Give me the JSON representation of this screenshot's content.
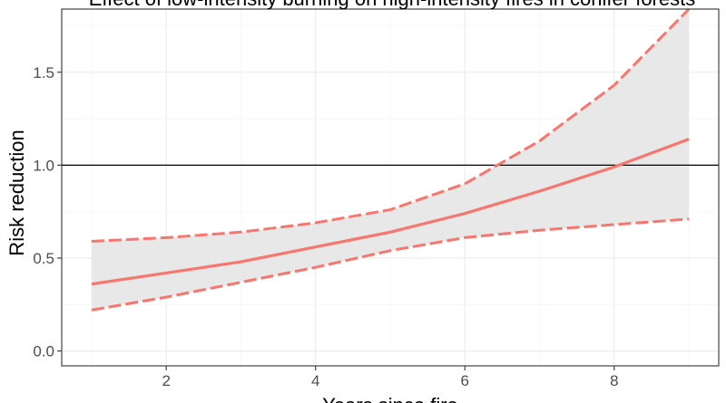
{
  "chart_data": {
    "type": "line",
    "title": "Effect of low-intensity burning on high-intensity fires in conifer forests",
    "xlabel": "Years since fire",
    "ylabel": "Risk reduction",
    "xlim": [
      0.6,
      9.4
    ],
    "ylim": [
      -0.08,
      1.84
    ],
    "x_ticks": [
      2,
      4,
      6,
      8
    ],
    "y_ticks": [
      0.0,
      0.5,
      1.0,
      1.5
    ],
    "x_tick_labels": [
      "2",
      "4",
      "6",
      "8"
    ],
    "y_tick_labels": [
      "0.0",
      "0.5",
      "1.0",
      "1.5"
    ],
    "grid": true,
    "reference_line": {
      "y": 1.0,
      "color": "#000000"
    },
    "x": [
      1,
      2,
      3,
      4,
      5,
      6,
      7,
      8,
      9
    ],
    "estimate": [
      0.36,
      0.42,
      0.48,
      0.56,
      0.64,
      0.74,
      0.86,
      0.99,
      1.14
    ],
    "lower": [
      0.22,
      0.29,
      0.37,
      0.45,
      0.54,
      0.61,
      0.65,
      0.68,
      0.71
    ],
    "upper": [
      0.59,
      0.61,
      0.64,
      0.69,
      0.76,
      0.9,
      1.13,
      1.43,
      1.84
    ],
    "line_color": "#f8766d",
    "ribbon_color": "#e8e8e8"
  }
}
